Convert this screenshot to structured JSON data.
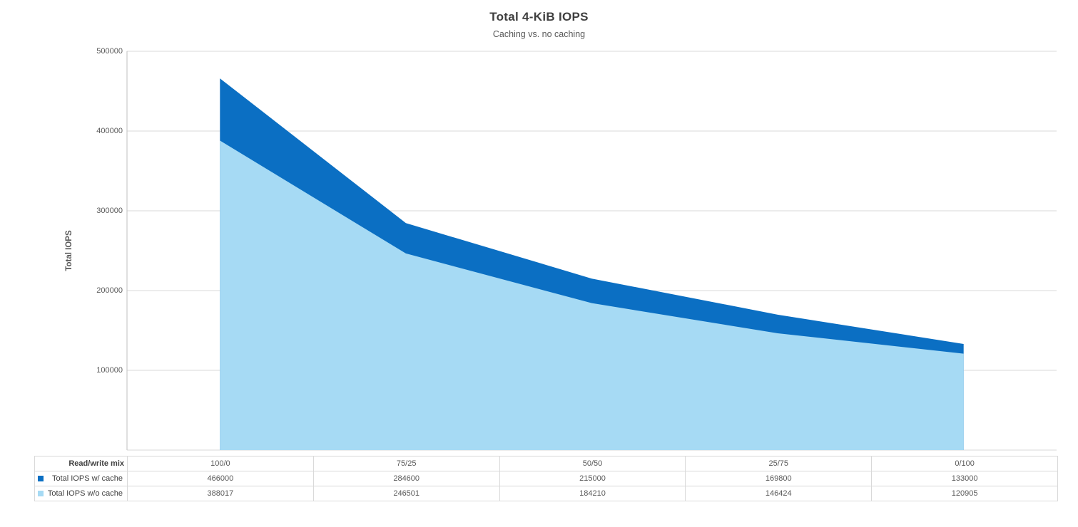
{
  "chart_data": {
    "type": "area",
    "title": "Total 4-KiB IOPS",
    "subtitle": "Caching vs. no caching",
    "ylabel": "Total IOPS",
    "xlabel": "Read/write mix",
    "categories": [
      "100/0",
      "75/25",
      "50/50",
      "25/75",
      "0/100"
    ],
    "series": [
      {
        "name": "Total IOPS w/ cache",
        "color": "#0b6fc3",
        "values": [
          466000,
          284600,
          215000,
          169800,
          133000
        ]
      },
      {
        "name": "Total IOPS w/o cache",
        "color": "#a6daf4",
        "values": [
          388017,
          246501,
          184210,
          146424,
          120905
        ]
      }
    ],
    "ylim": [
      0,
      500000
    ],
    "yticks": [
      100000,
      200000,
      300000,
      400000,
      500000
    ],
    "grid": "horizontal",
    "legend_position": "table-left"
  },
  "colors": {
    "gridline": "#d9d9d9",
    "axis": "#bfbfbf",
    "table_border": "#d9d9d9",
    "title_text": "#3f3f3f",
    "tick_text": "#595959"
  }
}
